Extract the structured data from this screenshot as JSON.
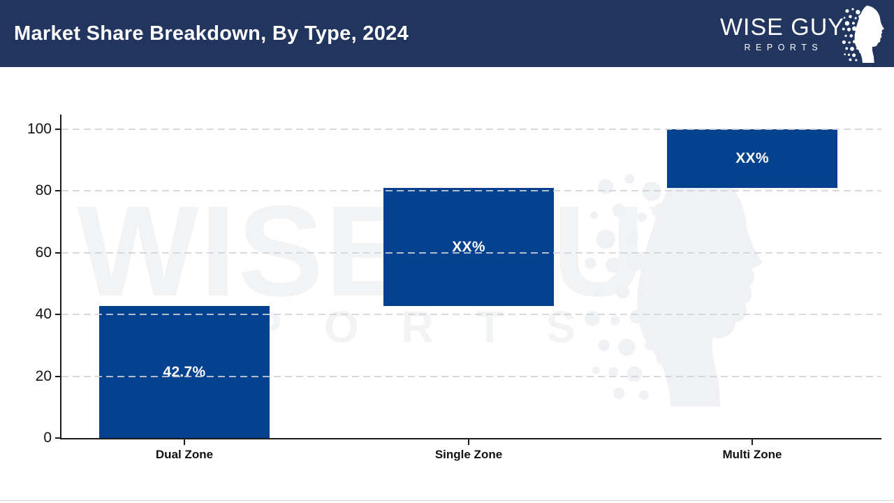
{
  "header": {
    "title": "Market Share Breakdown, By Type, 2024",
    "brand": {
      "name": "WISE GUY",
      "sub": "REPORTS"
    }
  },
  "watermark": {
    "name": "WISE GUY",
    "sub": "REPORTS"
  },
  "chart_data": {
    "type": "bar",
    "subtype": "waterfall",
    "title": "Market Share Breakdown, By Type, 2024",
    "categories": [
      "Dual Zone",
      "Single Zone",
      "Multi Zone"
    ],
    "bars": [
      {
        "category": "Dual Zone",
        "start": 0,
        "end": 42.7,
        "label": "42.7%"
      },
      {
        "category": "Single Zone",
        "start": 42.7,
        "end": 81,
        "label": "XX%"
      },
      {
        "category": "Multi Zone",
        "start": 81,
        "end": 100,
        "label": "XX%"
      }
    ],
    "xlabel": "",
    "ylabel": "",
    "ylim": [
      0,
      100
    ],
    "yticks": [
      0,
      20,
      40,
      60,
      80,
      100
    ],
    "grid": "horizontal-dashed",
    "legend": "none"
  },
  "colors": {
    "header_bg": "#21355e",
    "bar": "#04418f",
    "bar_label": "#ffffff",
    "grid": "#d7d7d7",
    "axis": "#1a1a1a",
    "tick_text": "#111111",
    "watermark": "#f2f3f5"
  }
}
